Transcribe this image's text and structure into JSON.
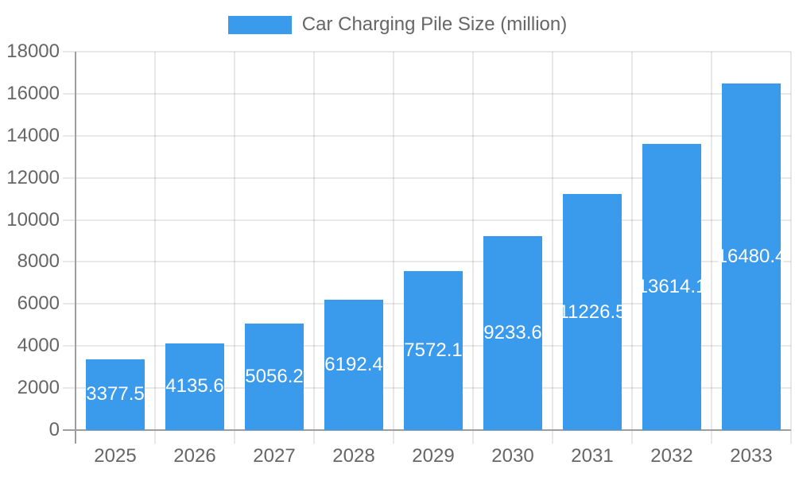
{
  "chart_data": {
    "type": "bar",
    "title": "Car Charging Pile Size (million)",
    "legend": {
      "label": "Car Charging Pile Size (million)",
      "position": "top"
    },
    "categories": [
      "2025",
      "2026",
      "2027",
      "2028",
      "2029",
      "2030",
      "2031",
      "2032",
      "2033"
    ],
    "series": [
      {
        "name": "Car Charging Pile Size (million)",
        "values": [
          3377.5,
          4135.6,
          5056.2,
          6192.4,
          7572.1,
          9233.6,
          11226.5,
          13614.1,
          16480.4
        ]
      }
    ],
    "value_labels_shown": true,
    "xlabel": "",
    "ylabel": "",
    "ylim": [
      0,
      18000
    ],
    "y_tick_step": 2000,
    "y_ticks": [
      0,
      2000,
      4000,
      6000,
      8000,
      10000,
      12000,
      14000,
      16000,
      18000
    ],
    "grid": true,
    "colors": {
      "bar": "#3A9AEC",
      "value_label": "#FFFFFF",
      "axis_text": "#666666",
      "grid_line": "rgba(0,0,0,0.09)",
      "axis_line": "#9E9E9E",
      "background": "#FFFFFF"
    }
  }
}
